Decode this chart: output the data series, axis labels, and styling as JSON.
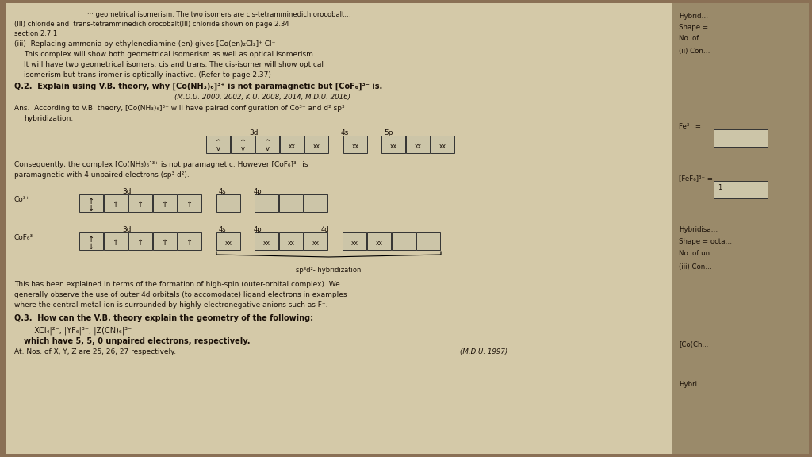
{
  "outer_bg": "#8a7055",
  "page_bg": "#d4c9a8",
  "right_bg": "#9a8a6a",
  "text_color": "#1a1008",
  "box_color": "#ccc8b0",
  "line1": "···· geometrical isomerism. The two isomers are cis-tetramminedichlorocobalt",
  "line2": "(III) chloride and trans-tetramminedichlorocobalt(III) chloride shown on page 2.34",
  "line3": "section 2.7.1",
  "line4": "(iii)  Replacing ammonia by ethylenediamine (en) gives [Co(en)₂Cl₂]⁺ Cl⁻",
  "line5": "This complex will show both geometrical isomerism as well as optical isomerism.",
  "line6": "It will have two geometrical isomers: cis and trans. The cis-isomer will show optical",
  "line7": "isomerism but trans-iromer is optically inactive. (Refer to page 2.37)",
  "line8": "Q.2.  Explain using V.B. theory, why [Co(NH₃)₆]³⁺ is not paramagnetic but [CoF₆]³⁻ is.",
  "line9": "(M.D.U. 2000, 2002, K.U. 2008, 2014, M.D.U. 2016)",
  "line10": "Ans.  According to V.B. theory, [Co(NH₃)₆]³⁺ will have paired configuration of Co³⁺ and d² sp³",
  "line11": "hybridization.",
  "line_cons1": "Consequently, the complex [Co(NH₃)₆]³⁺ is not paramagnetic. However [CoF₆]³⁻ is",
  "line_cons2": "paramagnetic with 4 unpaired electrons (sp³ d²).",
  "line_bt1": "This has been explained in terms of the formation of high-spin (outer-orbital complex). We",
  "line_bt2": "generally observe the use of outer 4d orbitals (to accomodate) ligand electrons in examples",
  "line_bt3": "where the central metal-ion is surrounded by highly electronegative anions such as F⁻.",
  "line_q3": "Q.3.  How can the V.B. theory explain the geometry of the following:",
  "line_q3b": "|XCl₄|²⁻, |YF₆|³⁻, |Z(CN)₆|³⁻",
  "line_q3c": "which have 5, 5, 0 unpaired electrons, respectively.",
  "line_q3d": "At. Nos. of X, Y, Z are 25, 26, 27 respectively.",
  "line_mdu": "(M.D.U. 1997)"
}
